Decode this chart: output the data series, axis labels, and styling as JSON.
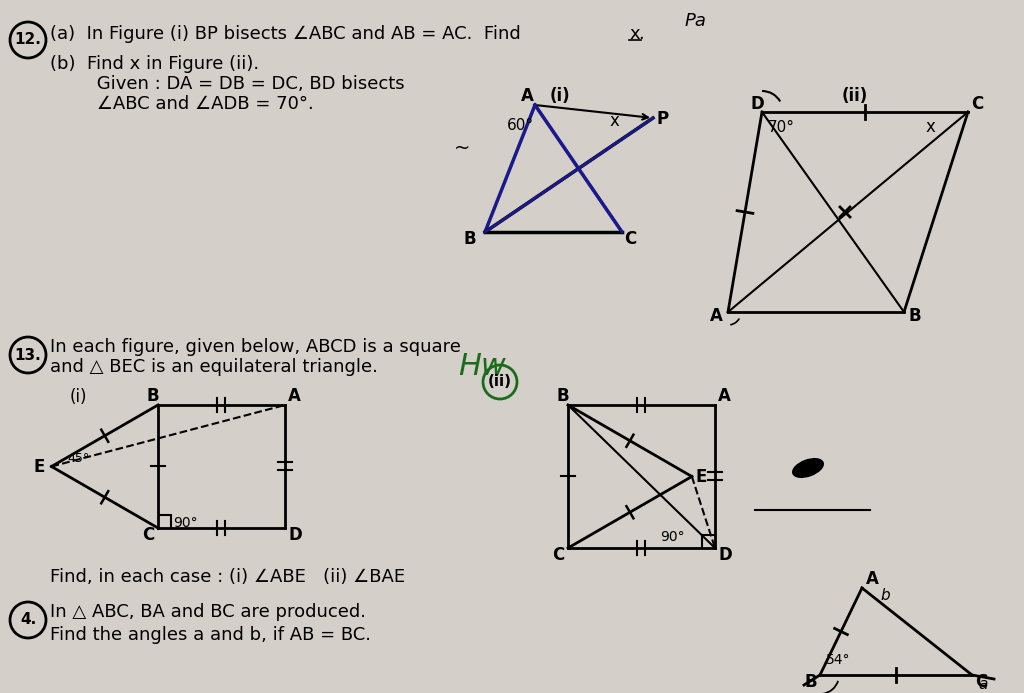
{
  "background_color": "#d4cfc8",
  "q12_label": "12.",
  "q12a_text": "(a)  In Figure (i) BP bisects ∠ABC and AB = AC.  Find x.",
  "q12b_line1": "(b)  Find x in Figure (ii).",
  "q12b_line2": "     Given : DA = DB = DC, BD bisects",
  "q12b_line3": "     ∠ABC and ∠ADB = 70°.",
  "q13_label": "13.",
  "q13_line1": "In each figure, given below, ABCD is a square",
  "q13_line2": "and △ BEC is an equilateral triangle.",
  "q13_sub": "Find, in each case : (i) ∠ABE   (ii) ∠BAE",
  "q4_label": "4.",
  "q4_line1": "In △ ABC, BA and BC are produced.",
  "q4_line2": "Find the angles a and b, if AB = BC.",
  "Pa_label": "Pa"
}
